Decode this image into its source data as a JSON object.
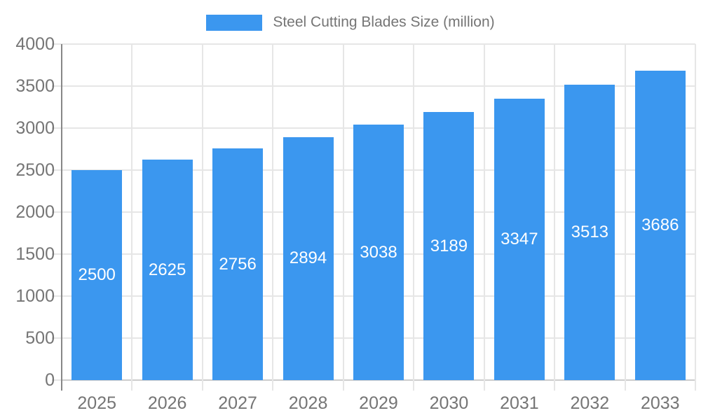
{
  "legend": {
    "label": "Steel Cutting Blades Size (million)"
  },
  "colors": {
    "bar": "#3B97EF",
    "bar_label": "#FFFFFF",
    "axis_text": "#757575",
    "grid": "#E6E6E6",
    "baseline": "#CCCCCC",
    "axis_line": "#878787",
    "background": "#FFFFFF"
  },
  "chart_data": {
    "type": "bar",
    "title": "Steel Cutting Blades Size (million)",
    "categories": [
      "2025",
      "2026",
      "2027",
      "2028",
      "2029",
      "2030",
      "2031",
      "2032",
      "2033"
    ],
    "values": [
      2500,
      2625,
      2756,
      2894,
      3038,
      3189,
      3347,
      3513,
      3686
    ],
    "bar_value_labels": [
      "2500",
      "2625",
      "2756",
      "2894",
      "3038",
      "3189",
      "3347",
      "3513",
      "3686"
    ],
    "xlabel": "",
    "ylabel": "",
    "ylim": [
      0,
      4000
    ],
    "yticks": [
      0,
      500,
      1000,
      1500,
      2000,
      2500,
      3000,
      3500,
      4000
    ],
    "grid": true,
    "legend_position": "top",
    "bar_labels_inside": true
  }
}
